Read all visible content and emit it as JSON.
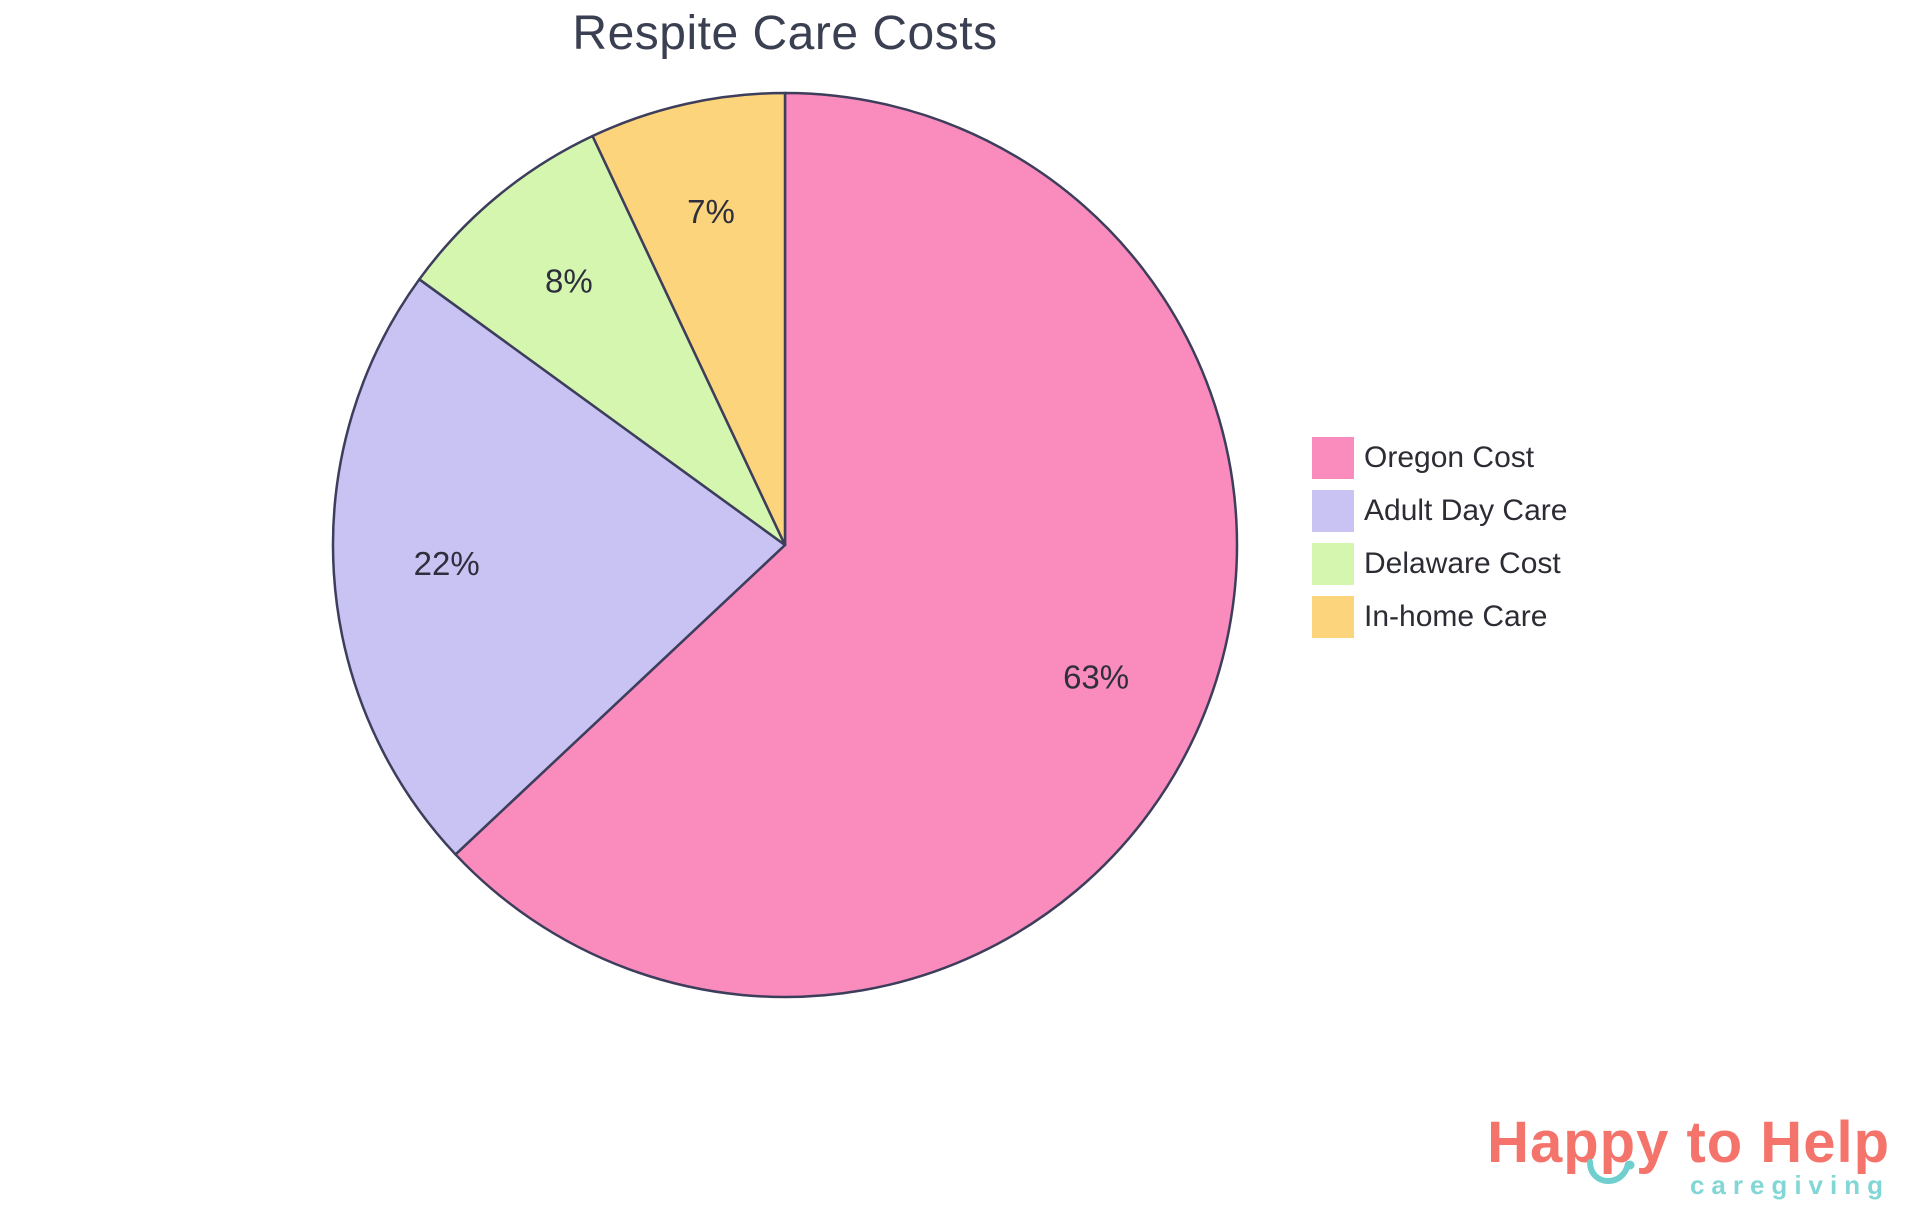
{
  "chart_data": {
    "type": "pie",
    "title": "Respite Care Costs",
    "categories": [
      "Oregon Cost",
      "Adult Day Care",
      "Delaware Cost",
      "In-home Care"
    ],
    "values": [
      63,
      22,
      8,
      7
    ],
    "unit": "%",
    "slice_labels": [
      "63%",
      "22%",
      "8%",
      "7%"
    ],
    "colors": [
      "#F98CBD",
      "#C8C3F3",
      "#D4F6AE",
      "#FBD47C"
    ],
    "stroke_color": "#3D3D5C",
    "start_angle_deg": 0,
    "direction": "clockwise",
    "legend_position": "right",
    "grid": false
  },
  "legend": {
    "items": [
      {
        "label": "Oregon Cost",
        "color": "#F98CBD"
      },
      {
        "label": "Adult Day Care",
        "color": "#C8C3F3"
      },
      {
        "label": "Delaware Cost",
        "color": "#D4F6AE"
      },
      {
        "label": "In-home Care",
        "color": "#FBD47C"
      }
    ]
  },
  "logo": {
    "title": "Happy to Help",
    "subtitle": "caregiving",
    "title_color": "#F4746B",
    "subtitle_color": "#82D7D6",
    "icon": "smile-icon"
  },
  "page": {
    "background": "#FFFFFF"
  }
}
